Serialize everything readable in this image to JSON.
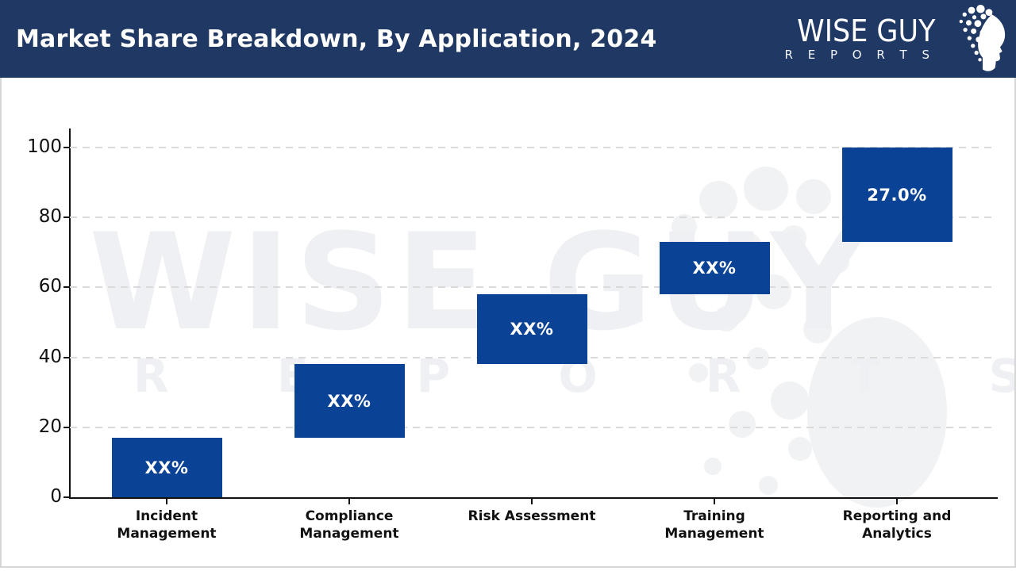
{
  "header": {
    "title": "Market Share Breakdown, By Application, 2024",
    "logo": {
      "wordmark": "WISE GUY",
      "subtext": "R E P O R T S"
    }
  },
  "watermark": {
    "line1": "WISE GUY",
    "line2": "R E P O R T S"
  },
  "chart_data": {
    "type": "bar",
    "subtype": "waterfall",
    "title": "Market Share Breakdown, By Application, 2024",
    "categories": [
      "Incident Management",
      "Compliance Management",
      "Risk Assessment",
      "Training Management",
      "Reporting and Analytics"
    ],
    "category_lines": [
      [
        "Incident",
        "Management"
      ],
      [
        "Compliance",
        "Management"
      ],
      [
        "Risk Assessment"
      ],
      [
        "Training",
        "Management"
      ],
      [
        "Reporting and",
        "Analytics"
      ]
    ],
    "segments": [
      [
        0,
        17
      ],
      [
        17,
        38
      ],
      [
        38,
        58
      ],
      [
        58,
        73
      ],
      [
        73,
        100
      ]
    ],
    "values": [
      17,
      21,
      20,
      15,
      27
    ],
    "bar_labels": [
      "XX%",
      "XX%",
      "XX%",
      "XX%",
      "27.0%"
    ],
    "unit": "%",
    "ylim": [
      0,
      100
    ],
    "yticks": [
      0,
      20,
      40,
      60,
      80,
      100
    ],
    "legend": "none",
    "grid": "horizontal-dashed",
    "colors": {
      "bar": "#0a4296",
      "bar_label": "#ffffff",
      "axis": "#111111",
      "grid": "#dadada"
    }
  },
  "colors": {
    "header_bg": "#1f3864",
    "header_text": "#ffffff",
    "page_bg": "#ffffff"
  }
}
